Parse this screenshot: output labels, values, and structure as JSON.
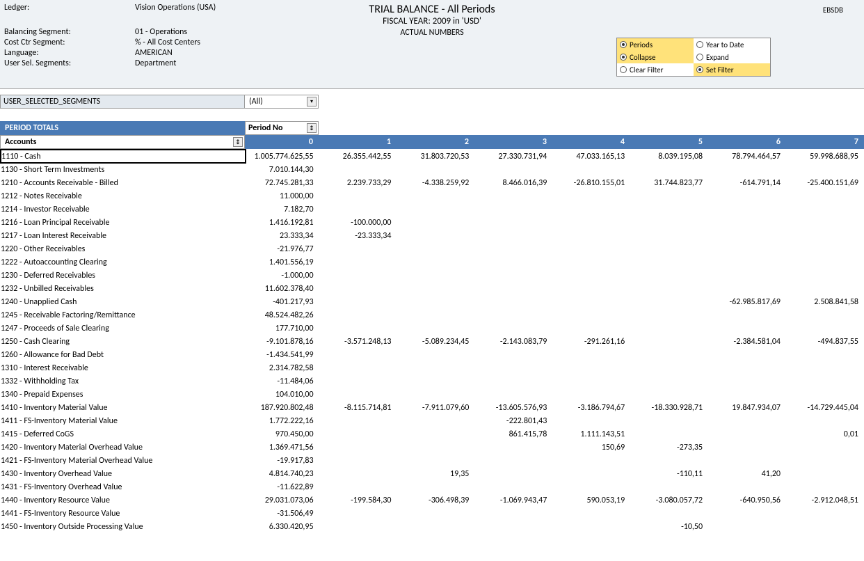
{
  "header": {
    "ledger_label": "Ledger:",
    "ledger_value": "Vision Operations (USA)",
    "balseg_label": "Balancing Segment:",
    "balseg_value": "01 - Operations",
    "costctr_label": "Cost Ctr Segment:",
    "costctr_value": "% - All Cost Centers",
    "lang_label": "Language:",
    "lang_value": "AMERICAN",
    "userseg_label": "User Sel. Segments:",
    "userseg_value": "Department",
    "title_main": "TRIAL BALANCE - All Periods",
    "title_sub": "FISCAL YEAR: 2009 in 'USD'",
    "title_sub2": "ACTUAL NUMBERS",
    "db_label": "EBSDB"
  },
  "options": {
    "periods": "Periods",
    "ytd": "Year to Date",
    "collapse": "Collapse",
    "expand": "Expand",
    "clear": "Clear Filter",
    "set": "Set Filter"
  },
  "filter": {
    "label": "USER_SELECTED_SEGMENTS",
    "value": "(All)"
  },
  "section": {
    "period_totals": "PERIOD TOTALS",
    "period_no": "Period No",
    "accounts": "Accounts"
  },
  "period_cols": [
    "0",
    "1",
    "2",
    "3",
    "4",
    "5",
    "6",
    "7"
  ],
  "rows": [
    {
      "acc": "1110 - Cash",
      "sel": true,
      "v": [
        "1.005.774.625,55",
        "26.355.442,55",
        "31.803.720,53",
        "27.330.731,94",
        "47.033.165,13",
        "8.039.195,08",
        "78.794.464,57",
        "59.998.688,95"
      ]
    },
    {
      "acc": "1130 - Short Term Investments",
      "v": [
        "7.010.144,30",
        "",
        "",
        "",
        "",
        "",
        "",
        ""
      ]
    },
    {
      "acc": "1210 - Accounts Receivable - Billed",
      "v": [
        "72.745.281,33",
        "2.239.733,29",
        "-4.338.259,92",
        "8.466.016,39",
        "-26.810.155,01",
        "31.744.823,77",
        "-614.791,14",
        "-25.400.151,69"
      ]
    },
    {
      "acc": "1212 - Notes Receivable",
      "v": [
        "11.000,00",
        "",
        "",
        "",
        "",
        "",
        "",
        ""
      ]
    },
    {
      "acc": "1214 - Investor Receivable",
      "v": [
        "7.182,70",
        "",
        "",
        "",
        "",
        "",
        "",
        ""
      ]
    },
    {
      "acc": "1216 - Loan Principal Receivable",
      "v": [
        "1.416.192,81",
        "-100.000,00",
        "",
        "",
        "",
        "",
        "",
        ""
      ]
    },
    {
      "acc": "1217 - Loan Interest Receivable",
      "v": [
        "23.333,34",
        "-23.333,34",
        "",
        "",
        "",
        "",
        "",
        ""
      ]
    },
    {
      "acc": "1220 - Other Receivables",
      "v": [
        "-21.976,77",
        "",
        "",
        "",
        "",
        "",
        "",
        ""
      ]
    },
    {
      "acc": "1222 - Autoaccounting Clearing",
      "v": [
        "1.401.556,19",
        "",
        "",
        "",
        "",
        "",
        "",
        ""
      ]
    },
    {
      "acc": "1230 - Deferred Receivables",
      "v": [
        "-1.000,00",
        "",
        "",
        "",
        "",
        "",
        "",
        ""
      ]
    },
    {
      "acc": "1232 - Unbilled Receivables",
      "v": [
        "11.602.378,40",
        "",
        "",
        "",
        "",
        "",
        "",
        ""
      ]
    },
    {
      "acc": "1240 - Unapplied Cash",
      "v": [
        "-401.217,93",
        "",
        "",
        "",
        "",
        "",
        "-62.985.817,69",
        "2.508.841,58"
      ]
    },
    {
      "acc": "1245 - Receivable Factoring/Remittance",
      "v": [
        "48.524.482,26",
        "",
        "",
        "",
        "",
        "",
        "",
        ""
      ]
    },
    {
      "acc": "1247 - Proceeds of Sale Clearing",
      "v": [
        "177.710,00",
        "",
        "",
        "",
        "",
        "",
        "",
        ""
      ]
    },
    {
      "acc": "1250 - Cash Clearing",
      "v": [
        "-9.101.878,16",
        "-3.571.248,13",
        "-5.089.234,45",
        "-2.143.083,79",
        "-291.261,16",
        "",
        "-2.384.581,04",
        "-494.837,55"
      ]
    },
    {
      "acc": "1260 - Allowance for Bad Debt",
      "v": [
        "-1.434.541,99",
        "",
        "",
        "",
        "",
        "",
        "",
        ""
      ]
    },
    {
      "acc": "1310 - Interest Receivable",
      "v": [
        "2.314.782,58",
        "",
        "",
        "",
        "",
        "",
        "",
        ""
      ]
    },
    {
      "acc": "1332 - Withholding Tax",
      "v": [
        "-11.484,06",
        "",
        "",
        "",
        "",
        "",
        "",
        ""
      ]
    },
    {
      "acc": "1340 - Prepaid Expenses",
      "v": [
        "104.010,00",
        "",
        "",
        "",
        "",
        "",
        "",
        ""
      ]
    },
    {
      "acc": "1410 - Inventory Material Value",
      "v": [
        "187.920.802,48",
        "-8.115.714,81",
        "-7.911.079,60",
        "-13.605.576,93",
        "-3.186.794,67",
        "-18.330.928,71",
        "19.847.934,07",
        "-14.729.445,04"
      ]
    },
    {
      "acc": "1411 - FS-Inventory Material Value",
      "v": [
        "1.772.222,16",
        "",
        "",
        "-222.801,43",
        "",
        "",
        "",
        ""
      ]
    },
    {
      "acc": "1415 - Deferred CoGS",
      "v": [
        "970.450,00",
        "",
        "",
        "861.415,78",
        "1.111.143,51",
        "",
        "",
        "0,01"
      ]
    },
    {
      "acc": "1420 - Inventory Material Overhead Value",
      "v": [
        "1.369.471,56",
        "",
        "",
        "",
        "150,69",
        "-273,35",
        "",
        ""
      ]
    },
    {
      "acc": "1421 - FS-Inventory Material Overhead Value",
      "v": [
        "-19.917,83",
        "",
        "",
        "",
        "",
        "",
        "",
        ""
      ]
    },
    {
      "acc": "1430 - Inventory Overhead Value",
      "v": [
        "4.814.740,23",
        "",
        "19,35",
        "",
        "",
        "-110,11",
        "41,20",
        ""
      ]
    },
    {
      "acc": "1431 - FS-Inventory Overhead Value",
      "v": [
        "-11.622,89",
        "",
        "",
        "",
        "",
        "",
        "",
        ""
      ]
    },
    {
      "acc": "1440 - Inventory Resource Value",
      "v": [
        "29.031.073,06",
        "-199.584,30",
        "-306.498,39",
        "-1.069.943,47",
        "590.053,19",
        "-3.080.057,72",
        "-640.950,56",
        "-2.912.048,51"
      ]
    },
    {
      "acc": "1441 - FS-Inventory Resource Value",
      "v": [
        "-31.506,49",
        "",
        "",
        "",
        "",
        "",
        "",
        ""
      ]
    },
    {
      "acc": "1450 - Inventory Outside Processing Value",
      "v": [
        "6.330.420,95",
        "",
        "",
        "",
        "",
        "-10,50",
        "",
        ""
      ]
    }
  ],
  "colors": {
    "header_bg": "#eef2f5",
    "section_bg": "#4a7ab5",
    "highlight": "#ffe27a"
  }
}
